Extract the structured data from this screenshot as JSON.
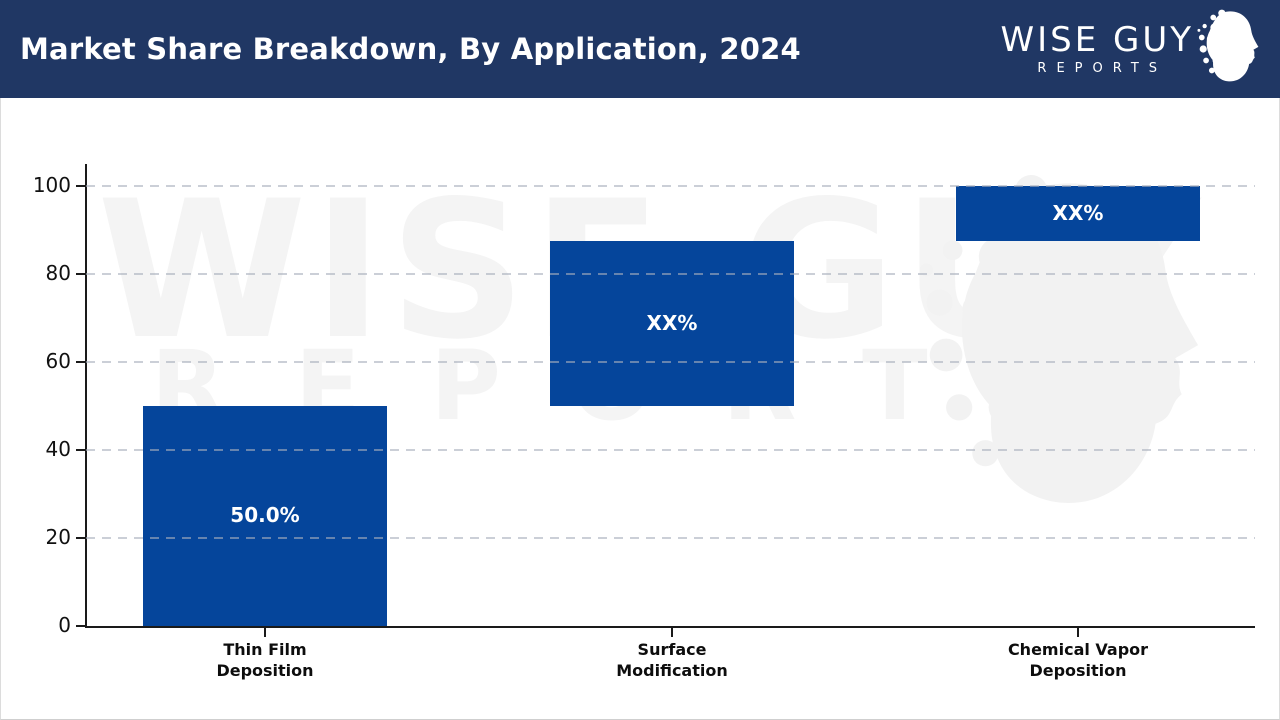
{
  "header": {
    "title": "Market Share Breakdown, By Application, 2024",
    "logo": {
      "name_line": "WISE GUY",
      "reports_line": "REPORTS"
    }
  },
  "watermark": {
    "line1": "WISE GUY",
    "line2": "REPORTS"
  },
  "chart_data": {
    "type": "bar",
    "subtype": "floating-segment-stacked",
    "title": "Market Share Breakdown, By Application, 2024",
    "categories": [
      {
        "line1": "Thin Film",
        "line2": "Deposition"
      },
      {
        "line1": "Surface",
        "line2": "Modification"
      },
      {
        "line1": "Chemical Vapor",
        "line2": "Deposition"
      }
    ],
    "segments": [
      {
        "category": "Thin Film Deposition",
        "start": 0,
        "end": 50.0,
        "value_label": "50.0%"
      },
      {
        "category": "Surface Modification",
        "start": 50.0,
        "end": 87.5,
        "value_label": "XX%"
      },
      {
        "category": "Chemical Vapor Deposition",
        "start": 87.5,
        "end": 100.0,
        "value_label": "XX%"
      }
    ],
    "ylim": [
      0,
      100
    ],
    "yticks": [
      0,
      20,
      40,
      60,
      80,
      100
    ],
    "xlabel": "",
    "ylabel": "",
    "grid": "dashed-horizontal",
    "legend": "none",
    "bar_color": "#05459b",
    "value_label_color": "#ffffff"
  },
  "colors": {
    "header_bg": "#203764",
    "bar": "#05459b",
    "axis": "#1a1a1a",
    "grid": "#c8cdd8",
    "tick_text": "#111111",
    "watermark": "#f4f4f4"
  }
}
